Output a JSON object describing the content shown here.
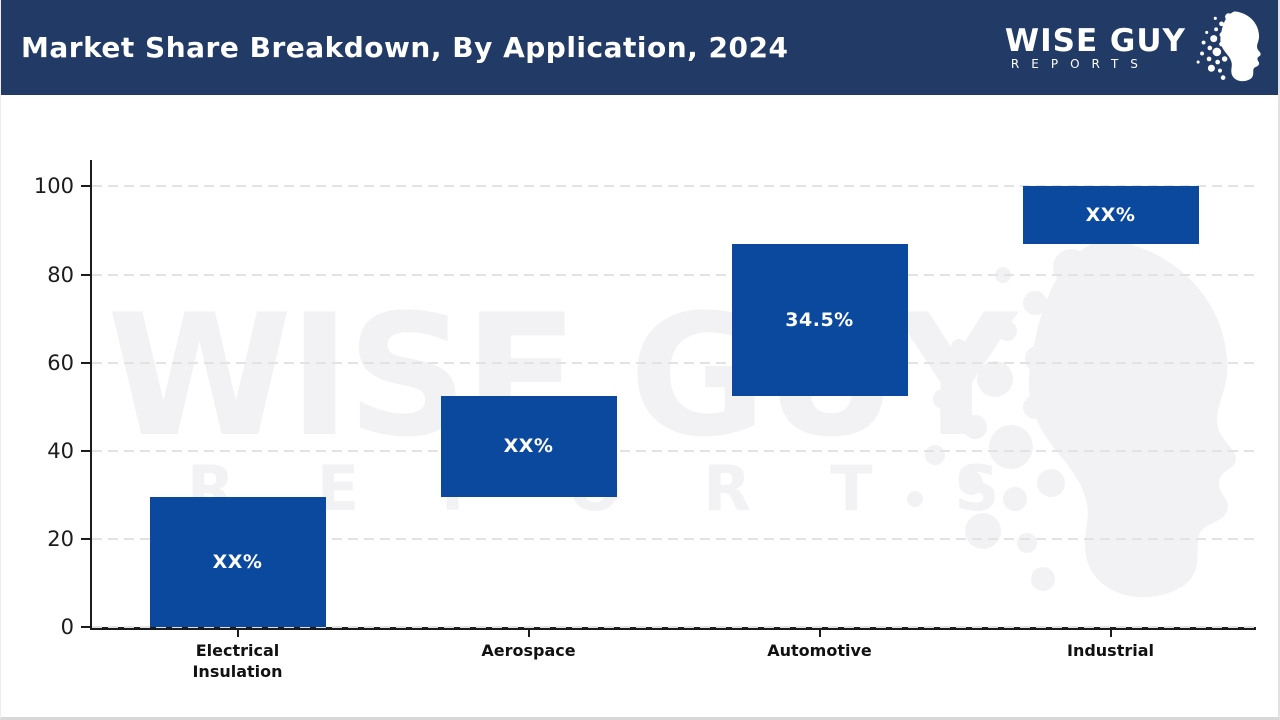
{
  "header": {
    "title": "Market Share Breakdown, By Application, 2024",
    "logo": {
      "line1": "WISE GUY",
      "line2": "REPORTS"
    }
  },
  "watermark": {
    "line1": "WISE GUY",
    "line2": "REPORTS"
  },
  "colors": {
    "header_bg": "#213a66",
    "bar": "#0b499e",
    "gridline": "#e3e3e3",
    "axis": "#1c1c1c",
    "watermark": "#f2f2f4",
    "value_label_text": "#ffffff"
  },
  "chart_data": {
    "type": "bar",
    "subtype": "waterfall (floating segments)",
    "title": "Market Share Breakdown, By Application, 2024",
    "units": "%",
    "categories": [
      "Electrical Insulation",
      "Aerospace",
      "Automotive",
      "Industrial"
    ],
    "segments": [
      {
        "category": "Electrical Insulation",
        "start": 0,
        "end": 29.5,
        "value": 29.5,
        "value_label": "XX%"
      },
      {
        "category": "Aerospace",
        "start": 29.5,
        "end": 52.5,
        "value": 23,
        "value_label": "XX%"
      },
      {
        "category": "Automotive",
        "start": 52.5,
        "end": 87,
        "end_note": "cumulative",
        "value": 34.5,
        "value_label": "34.5%"
      },
      {
        "category": "Industrial",
        "start": 87,
        "end": 100,
        "value": 13,
        "value_label": "XX%"
      }
    ],
    "yticks": [
      0,
      20,
      40,
      60,
      80,
      100
    ],
    "ylim": [
      0,
      106
    ],
    "xlabel": "",
    "ylabel": "",
    "grid": "horizontal dashed",
    "legend": "none"
  }
}
